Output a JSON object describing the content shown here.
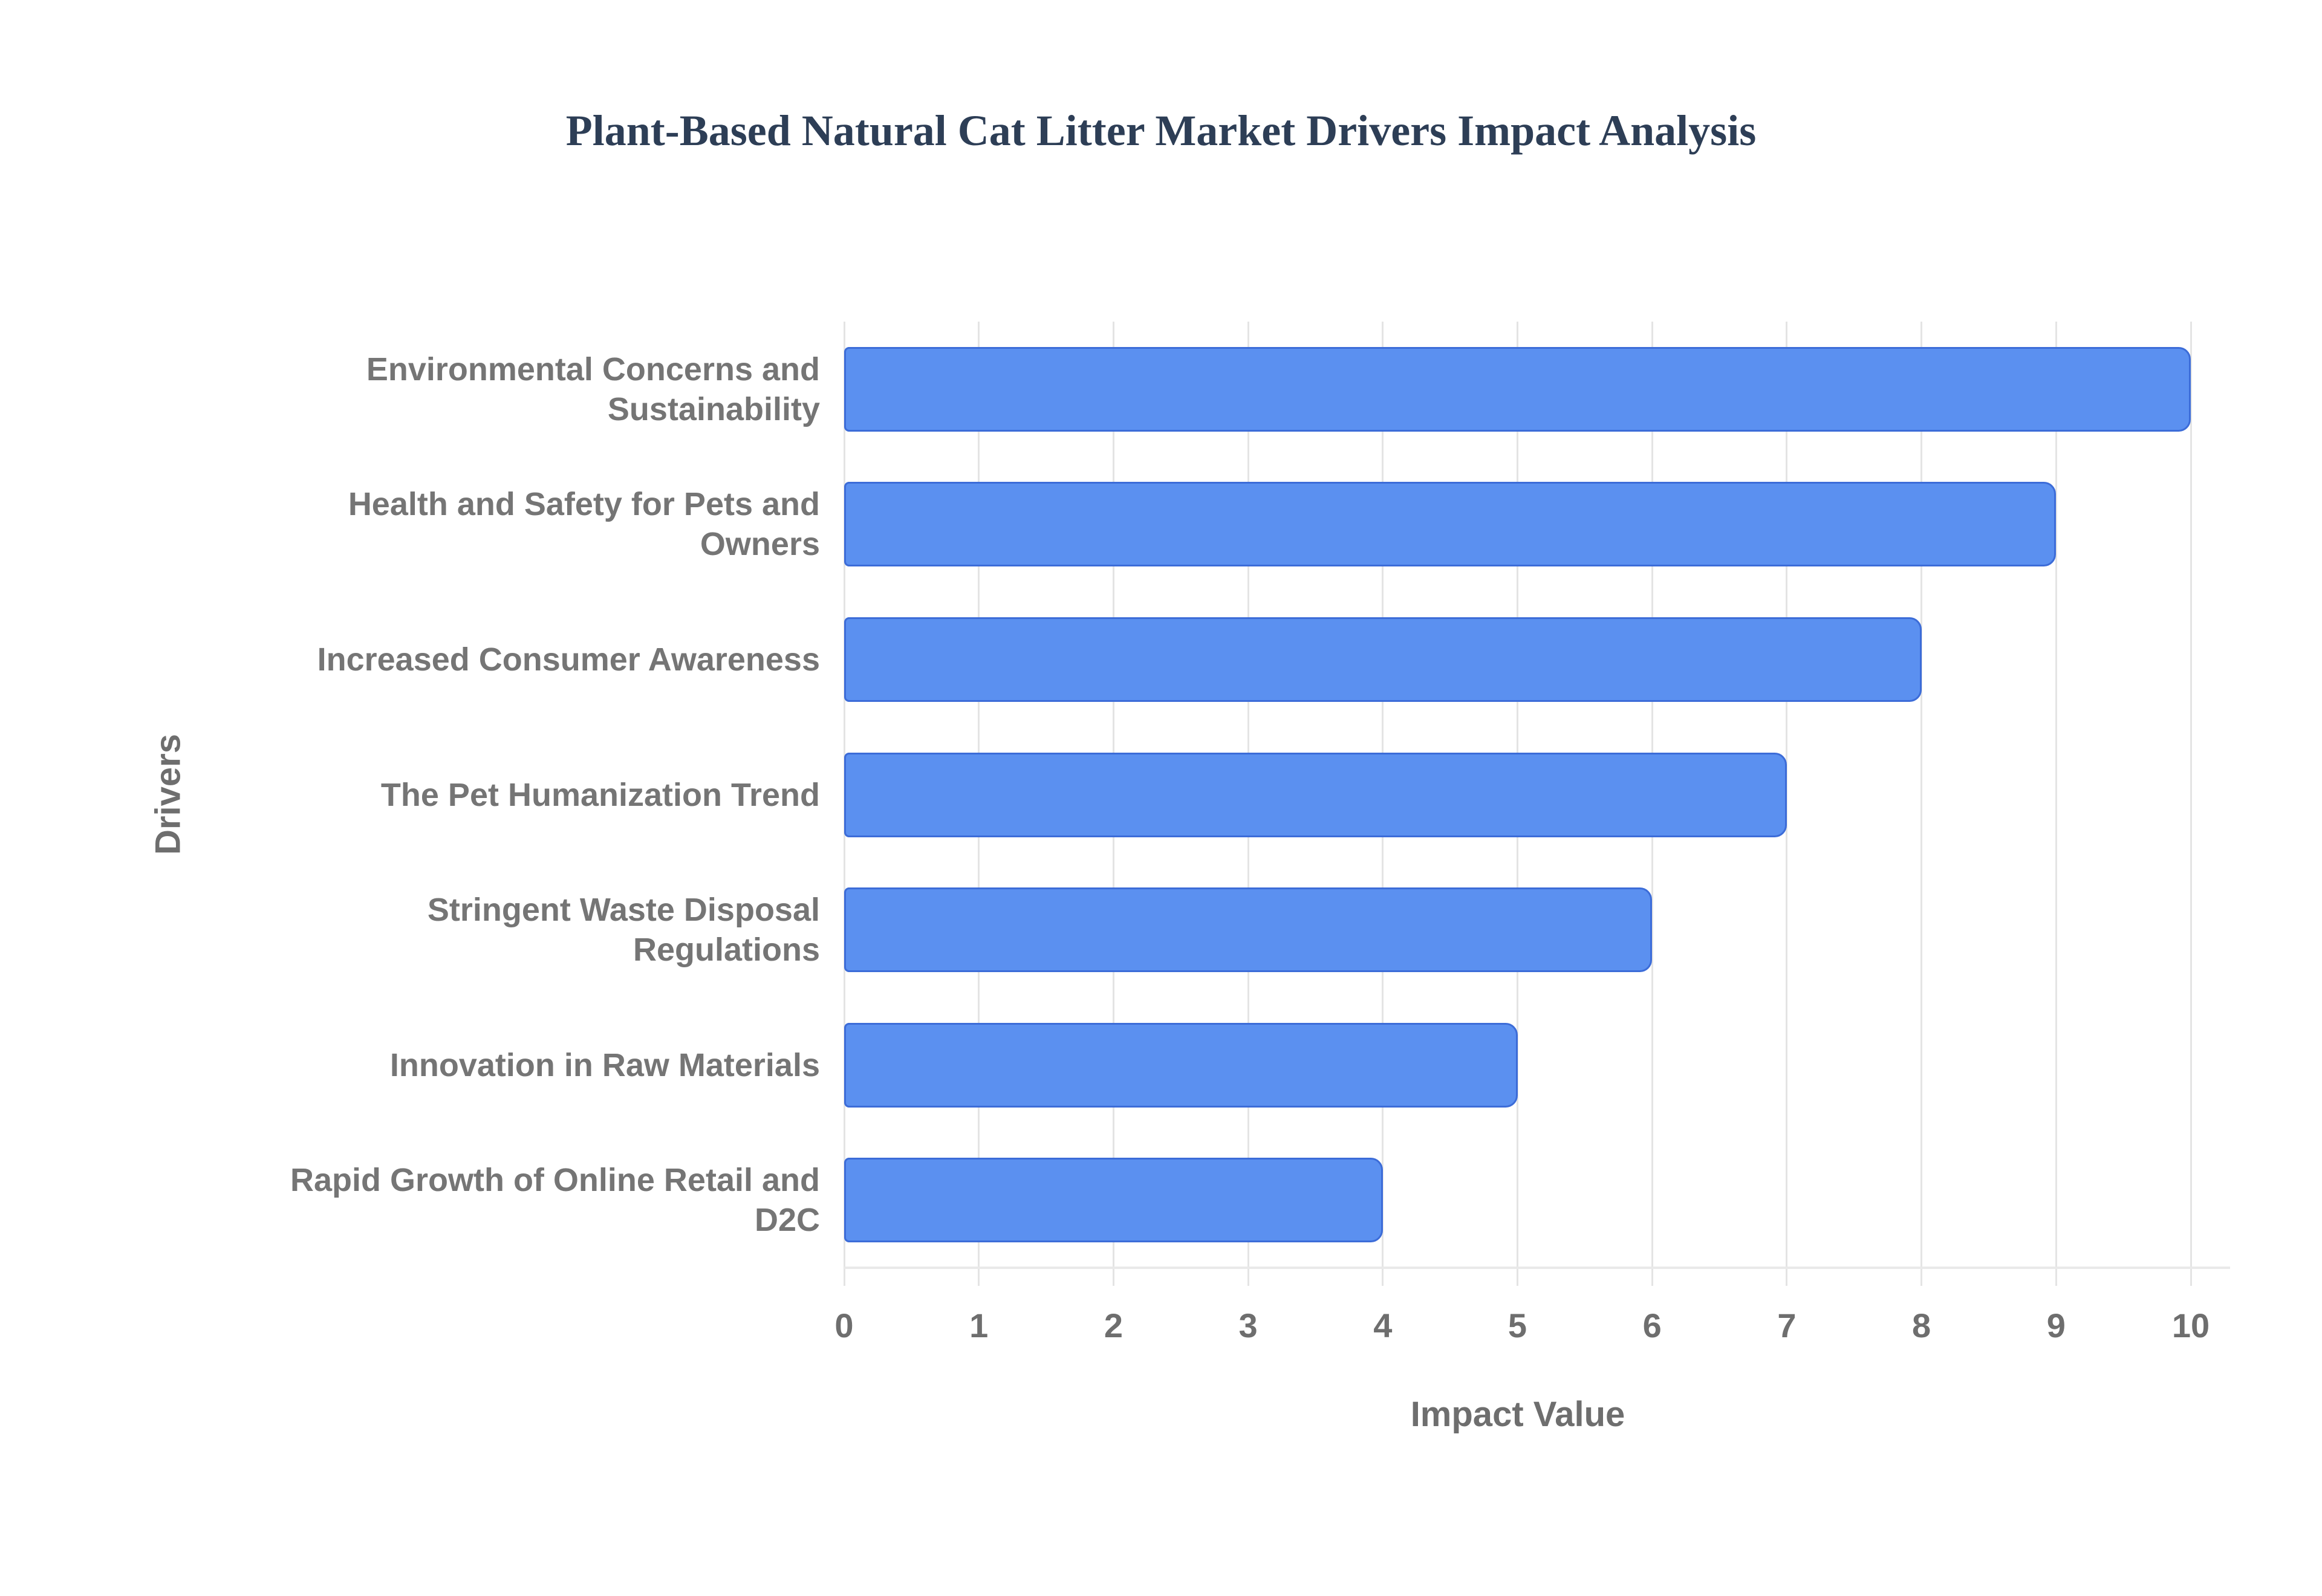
{
  "chart_data": {
    "type": "bar",
    "orientation": "horizontal",
    "title": "Plant-Based Natural Cat Litter Market Drivers Impact Analysis",
    "categories": [
      "Environmental Concerns and Sustainability",
      "Health and Safety for Pets and Owners",
      "Increased Consumer Awareness",
      "The Pet Humanization Trend",
      "Stringent Waste Disposal Regulations",
      "Innovation in Raw Materials",
      "Rapid Growth of Online Retail and D2C"
    ],
    "values": [
      10,
      9,
      8,
      7,
      6,
      5,
      4
    ],
    "xlabel": "Impact Value",
    "ylabel": "Drivers",
    "xlim": [
      0,
      10
    ],
    "x_ticks": [
      0,
      1,
      2,
      3,
      4,
      5,
      6,
      7,
      8,
      9,
      10
    ],
    "grid": "vertical-only",
    "legend": "none",
    "colors": {
      "bar_fill": "#5b90f0",
      "bar_border": "#3c6cd8",
      "gridline": "#e4e4e4",
      "axis_line": "#e9e9e9",
      "title_text": "#2d3e56",
      "category_text": "#757575",
      "tick_text": "#6e6e6e",
      "background": "#ffffff"
    }
  }
}
